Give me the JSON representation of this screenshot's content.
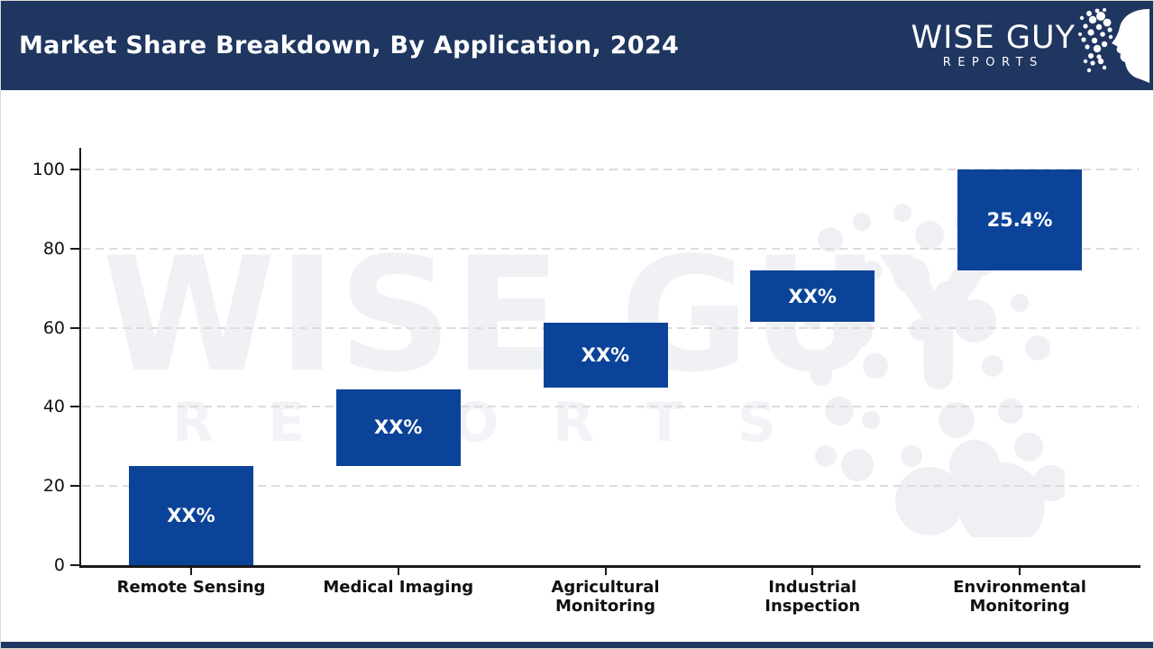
{
  "header": {
    "title": "Market Share Breakdown, By Application, 2024",
    "logo": {
      "line1": "WISE GUY",
      "line2": "REPORTS"
    }
  },
  "watermark": {
    "line1": "WISE GUY",
    "line2": "REPORTS"
  },
  "chart_data": {
    "type": "bar",
    "subtype": "floating-waterfall",
    "title": "Market Share Breakdown, By Application, 2024",
    "categories": [
      "Remote Sensing",
      "Medical Imaging",
      "Agricultural\nMonitoring",
      "Industrial\nInspection",
      "Environmental\nMonitoring"
    ],
    "segments": [
      {
        "category": "Remote Sensing",
        "start": 0,
        "end": 25,
        "label": "XX%"
      },
      {
        "category": "Medical Imaging",
        "start": 25,
        "end": 44.5,
        "label": "XX%"
      },
      {
        "category": "Agricultural Monitoring",
        "start": 44.9,
        "end": 61.2,
        "label": "XX%"
      },
      {
        "category": "Industrial Inspection",
        "start": 61.4,
        "end": 74.5,
        "label": "XX%"
      },
      {
        "category": "Environmental Monitoring",
        "start": 74.6,
        "end": 100,
        "label": "25.4%"
      }
    ],
    "yticks": [
      0,
      20,
      40,
      60,
      80,
      100
    ],
    "ylim": [
      0,
      100
    ],
    "grid": "horizontal-dashed",
    "legend": "none",
    "bar_color": "#0b4398",
    "bar_label_color": "#ffffff"
  },
  "colors": {
    "header_bg": "#1f3660",
    "footer_bg": "#1f3660",
    "grid": "#dcdcdc",
    "axis": "#1a1a1a",
    "watermark": "#f0f1f4",
    "page_border": "#d8d8d8"
  }
}
